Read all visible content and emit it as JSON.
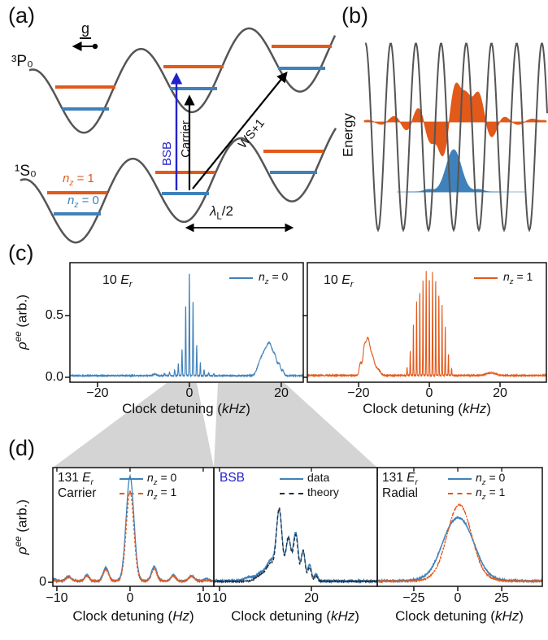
{
  "colors": {
    "blue": "#3f81ba",
    "orange": "#e2591a",
    "theory": "#1f2d3d",
    "bsb": "#2222cc",
    "lattice_grey": "#555555",
    "connector": "#d4d4d4"
  },
  "panels": {
    "a": "(a)",
    "b": "(b)",
    "c": "(c)",
    "d": "(d)"
  },
  "panel_a": {
    "upper_state": "³P₀",
    "lower_state": "¹S₀",
    "g_label": "g",
    "bsb_arrow": "BSB",
    "carrier_arrow": "Carrier",
    "ws_arrow": "WS+1",
    "lambda": {
      "sym": "λ",
      "sub": "L",
      "rest": "/2"
    },
    "nz1": {
      "sym": "n",
      "sub": "z",
      "eq": " = 1"
    },
    "nz0": {
      "sym": "n",
      "sub": "z",
      "eq": " = 0"
    }
  },
  "panel_b": {
    "ylabel": "Energy"
  },
  "chart_data": [
    {
      "id": "c_left",
      "type": "line",
      "annotation": {
        "value": "10 ",
        "sym": "E",
        "sub": "r"
      },
      "x": {
        "label_prefix": "Clock detuning (",
        "label_unit": "kHz",
        "label_suffix": ")",
        "min": -26,
        "max": 24.8,
        "ticks": [
          -20,
          0,
          20
        ],
        "tick_labels": [
          "−20",
          "0",
          "20"
        ]
      },
      "y": {
        "label_sym": "ρ",
        "label_sup": "ee",
        "label_rest": " (arb.)",
        "min": -0.04,
        "max": 0.93,
        "ticks": [
          0,
          0.5
        ],
        "tick_labels": [
          "0.0",
          "0.5"
        ]
      },
      "legend": [
        {
          "sym": "n",
          "sub": "z",
          "eq": " = 0",
          "color": "blue",
          "style": "solid"
        }
      ],
      "series": [
        {
          "name": "nz0",
          "color": "blue",
          "style": "solid",
          "baseline": 0.013,
          "noise": 0.0045,
          "peaks": [
            [
              0,
              0.86,
              0.09
            ],
            [
              0.8,
              0.62,
              0.09
            ],
            [
              -0.8,
              0.58,
              0.09
            ],
            [
              1.6,
              0.25,
              0.09
            ],
            [
              -1.6,
              0.22,
              0.09
            ],
            [
              2.4,
              0.11,
              0.09
            ],
            [
              -2.4,
              0.1,
              0.09
            ],
            [
              3.2,
              0.05,
              0.1
            ],
            [
              -3.2,
              0.045,
              0.1
            ],
            [
              4.2,
              0.022,
              0.12
            ],
            [
              -4.3,
              0.028,
              0.12
            ],
            [
              5.3,
              0.016,
              0.12
            ],
            [
              -5.4,
              0.02,
              0.12
            ],
            [
              -7.5,
              0.012,
              0.5
            ],
            [
              15.2,
              0.05,
              0.8
            ],
            [
              16.6,
              0.2,
              1.3
            ],
            [
              17.7,
              0.15,
              0.8
            ],
            [
              18.7,
              0.12,
              0.55
            ],
            [
              19.6,
              0.09,
              0.45
            ],
            [
              20.4,
              0.04,
              0.3
            ]
          ]
        }
      ]
    },
    {
      "id": "c_right",
      "type": "line",
      "annotation": {
        "value": "10 ",
        "sym": "E",
        "sub": "r"
      },
      "x": {
        "label_prefix": "Clock detuning (",
        "label_unit": "kHz",
        "label_suffix": ")",
        "min": -34.5,
        "max": 33.1,
        "ticks": [
          -20,
          0,
          20
        ],
        "tick_labels": [
          "−20",
          "0",
          "20"
        ]
      },
      "y": {
        "min": -0.04,
        "max": 0.93,
        "ticks": [
          0,
          0.5
        ],
        "tick_labels": [
          "0.0",
          "0.5"
        ]
      },
      "legend": [
        {
          "sym": "n",
          "sub": "z",
          "eq": " = 1",
          "color": "orange",
          "style": "solid"
        }
      ],
      "series": [
        {
          "name": "nz1",
          "color": "orange",
          "style": "solid",
          "baseline": 0.015,
          "noise": 0.005,
          "peaks": [
            [
              -19.5,
              0.1,
              0.45
            ],
            [
              -18.4,
              0.2,
              0.6
            ],
            [
              -17.4,
              0.27,
              0.75
            ],
            [
              -16.2,
              0.15,
              0.9
            ],
            [
              -14.6,
              0.05,
              1.0
            ],
            [
              -6.3,
              0.07,
              0.09
            ],
            [
              -5.4,
              0.2,
              0.09
            ],
            [
              -4.5,
              0.42,
              0.09
            ],
            [
              -3.6,
              0.6,
              0.09
            ],
            [
              -2.7,
              0.7,
              0.09
            ],
            [
              -1.8,
              0.78,
              0.09
            ],
            [
              -0.9,
              0.85,
              0.09
            ],
            [
              0,
              0.82,
              0.09
            ],
            [
              0.9,
              0.84,
              0.09
            ],
            [
              1.8,
              0.77,
              0.09
            ],
            [
              2.7,
              0.68,
              0.09
            ],
            [
              3.6,
              0.57,
              0.09
            ],
            [
              4.5,
              0.4,
              0.09
            ],
            [
              5.4,
              0.18,
              0.09
            ],
            [
              6.3,
              0.06,
              0.09
            ],
            [
              17.5,
              0.02,
              1.8
            ]
          ]
        }
      ]
    },
    {
      "id": "d_carrier",
      "type": "line",
      "annotation": {
        "value": "131 ",
        "sym": "E",
        "sub": "r",
        "line2": "Carrier"
      },
      "x": {
        "label_prefix": "Clock detuning (",
        "label_unit": "Hz",
        "label_suffix": ")",
        "min": -10.55,
        "max": 11.45,
        "ticks": [
          -10,
          0,
          10
        ],
        "tick_labels": [
          "−10",
          "0",
          "10"
        ]
      },
      "y": {
        "label_sym": "ρ",
        "label_sup": "ee",
        "label_rest": " (arb.)",
        "min": -0.035,
        "max": 1.0,
        "ticks": [
          0
        ],
        "tick_labels": [
          "0"
        ]
      },
      "legend": [
        {
          "sym": "n",
          "sub": "z",
          "eq": " = 0",
          "color": "blue",
          "style": "solid"
        },
        {
          "sym": "n",
          "sub": "z",
          "eq": " = 1",
          "color": "orange",
          "style": "dashed"
        }
      ],
      "series": [
        {
          "name": "nz0",
          "color": "blue",
          "style": "solid",
          "baseline": 0.012,
          "noise": 0.007,
          "peaks": [
            [
              0,
              0.91,
              0.75
            ],
            [
              3.3,
              0.125,
              0.52
            ],
            [
              -3.3,
              0.115,
              0.52
            ],
            [
              5.9,
              0.05,
              0.45
            ],
            [
              -5.9,
              0.05,
              0.45
            ],
            [
              8.4,
              0.045,
              0.5
            ],
            [
              -8.4,
              0.04,
              0.5
            ],
            [
              10.4,
              0.02,
              0.4
            ],
            [
              -10.4,
              0.02,
              0.4
            ]
          ]
        },
        {
          "name": "nz1",
          "color": "orange",
          "style": "dashed",
          "baseline": 0.012,
          "noise": 0.006,
          "peaks": [
            [
              0,
              0.78,
              0.72
            ],
            [
              3.3,
              0.105,
              0.5
            ],
            [
              -3.3,
              0.1,
              0.5
            ],
            [
              5.9,
              0.045,
              0.45
            ],
            [
              -5.9,
              0.042,
              0.45
            ],
            [
              8.4,
              0.04,
              0.5
            ],
            [
              -8.4,
              0.036,
              0.5
            ]
          ]
        }
      ]
    },
    {
      "id": "d_bsb",
      "type": "line",
      "annotation": {
        "label": "BSB"
      },
      "x": {
        "label_prefix": "Clock detuning (",
        "label_unit": "kHz",
        "label_suffix": ")",
        "min": 9.38,
        "max": 27.17,
        "ticks": [
          10,
          20
        ],
        "tick_labels": [
          "10",
          "20"
        ]
      },
      "y": {
        "min": -0.035,
        "max": 1.0,
        "ticks": [],
        "tick_labels": []
      },
      "legend": [
        {
          "text": "data",
          "color": "blue",
          "style": "solid"
        },
        {
          "text": "theory",
          "color": "theory",
          "style": "dashed"
        }
      ],
      "series": [
        {
          "name": "data",
          "color": "blue",
          "style": "solid",
          "baseline": 0.012,
          "noise": 0.011,
          "peaks": [
            [
              13.2,
              0.03,
              0.8
            ],
            [
              14.6,
              0.07,
              0.8
            ],
            [
              15.6,
              0.16,
              0.6
            ],
            [
              16.5,
              0.6,
              0.45
            ],
            [
              17.5,
              0.36,
              0.4
            ],
            [
              18.3,
              0.42,
              0.38
            ],
            [
              19.1,
              0.26,
              0.3
            ],
            [
              19.8,
              0.14,
              0.3
            ],
            [
              20.5,
              0.06,
              0.25
            ]
          ]
        },
        {
          "name": "theory",
          "color": "theory",
          "style": "dashed",
          "baseline": 0.008,
          "noise": 0.004,
          "peaks": [
            [
              14.6,
              0.06,
              0.85
            ],
            [
              15.6,
              0.14,
              0.6
            ],
            [
              16.5,
              0.62,
              0.43
            ],
            [
              17.5,
              0.38,
              0.4
            ],
            [
              18.3,
              0.4,
              0.36
            ],
            [
              19.1,
              0.27,
              0.3
            ],
            [
              19.8,
              0.12,
              0.28
            ],
            [
              20.5,
              0.05,
              0.25
            ]
          ]
        }
      ]
    },
    {
      "id": "d_radial",
      "type": "line",
      "annotation": {
        "value": "131 ",
        "sym": "E",
        "sub": "r",
        "line2": "Radial"
      },
      "x": {
        "label_prefix": "Clock detuning (",
        "label_unit": "kHz",
        "label_suffix": ")",
        "min": -45.8,
        "max": 48.1,
        "ticks": [
          -25,
          0,
          25
        ],
        "tick_labels": [
          "−25",
          "0",
          "25"
        ]
      },
      "y": {
        "min": -0.035,
        "max": 1.0,
        "ticks": [],
        "tick_labels": []
      },
      "legend": [
        {
          "sym": "n",
          "sub": "z",
          "eq": " = 0",
          "color": "blue",
          "style": "solid"
        },
        {
          "sym": "n",
          "sub": "z",
          "eq": " = 1",
          "color": "orange",
          "style": "dashed"
        }
      ],
      "series": [
        {
          "name": "nz0",
          "color": "blue",
          "style": "solid",
          "baseline": 0.012,
          "noise": 0.008,
          "peaks": [
            [
              -4,
              0.3,
              9
            ],
            [
              5,
              0.28,
              9
            ],
            [
              0,
              0.1,
              16
            ]
          ]
        },
        {
          "name": "nz1",
          "color": "orange",
          "style": "dashed",
          "baseline": 0.01,
          "noise": 0.006,
          "peaks": [
            [
              -2,
              0.33,
              8
            ],
            [
              4,
              0.31,
              8
            ],
            [
              1,
              0.11,
              14
            ]
          ]
        }
      ]
    }
  ]
}
